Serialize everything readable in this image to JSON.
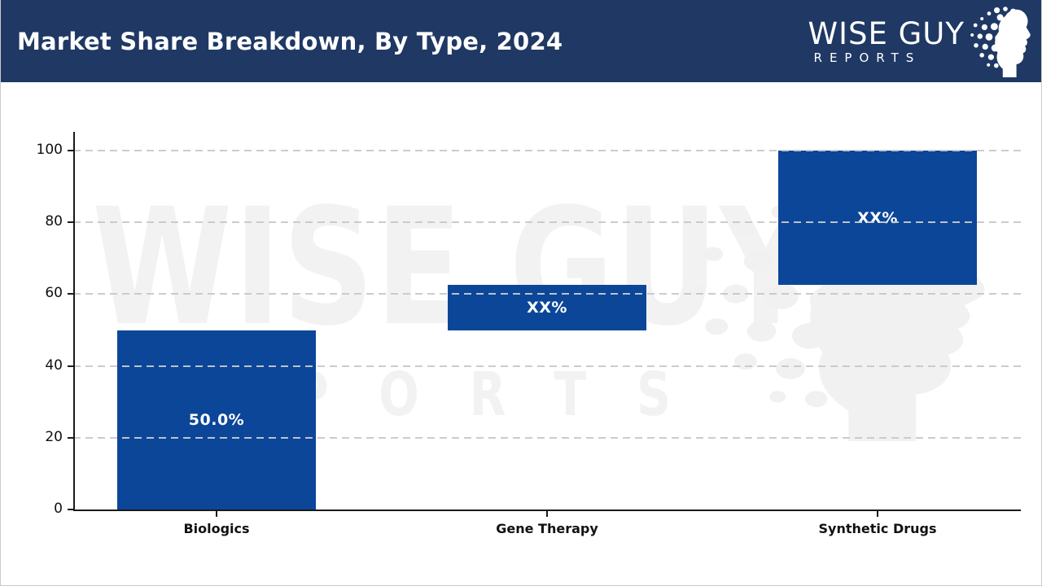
{
  "header": {
    "title": "Market Share Breakdown, By Type, 2024",
    "logo": {
      "name": "WISE GUY",
      "sub": "REPORTS"
    }
  },
  "watermark": {
    "name": "WISE GUY",
    "sub": "REPORTS"
  },
  "chart_data": {
    "type": "bar",
    "subtype": "waterfall",
    "title": "Market Share Breakdown, By Type, 2024",
    "categories": [
      "Biologics",
      "Gene Therapy",
      "Synthetic Drugs"
    ],
    "segments": [
      {
        "category": "Biologics",
        "start": 0,
        "end": 50,
        "label": "50.0%"
      },
      {
        "category": "Gene Therapy",
        "start": 50,
        "end": 62.5,
        "label": "XX%"
      },
      {
        "category": "Synthetic Drugs",
        "start": 62.5,
        "end": 100,
        "label": "XX%"
      }
    ],
    "xlabel": "",
    "ylabel": "",
    "ylim": [
      0,
      105
    ],
    "yticks": [
      0,
      20,
      40,
      60,
      80,
      100
    ],
    "grid": "horizontal-dashed",
    "legend": "none",
    "colors": {
      "bar": "#0b4699",
      "bar_label": "#ffffff",
      "grid": "#c9c9c9",
      "axis": "#1a1a1a",
      "header_bg": "#1f3864",
      "watermark": "#f2f2f2"
    }
  }
}
